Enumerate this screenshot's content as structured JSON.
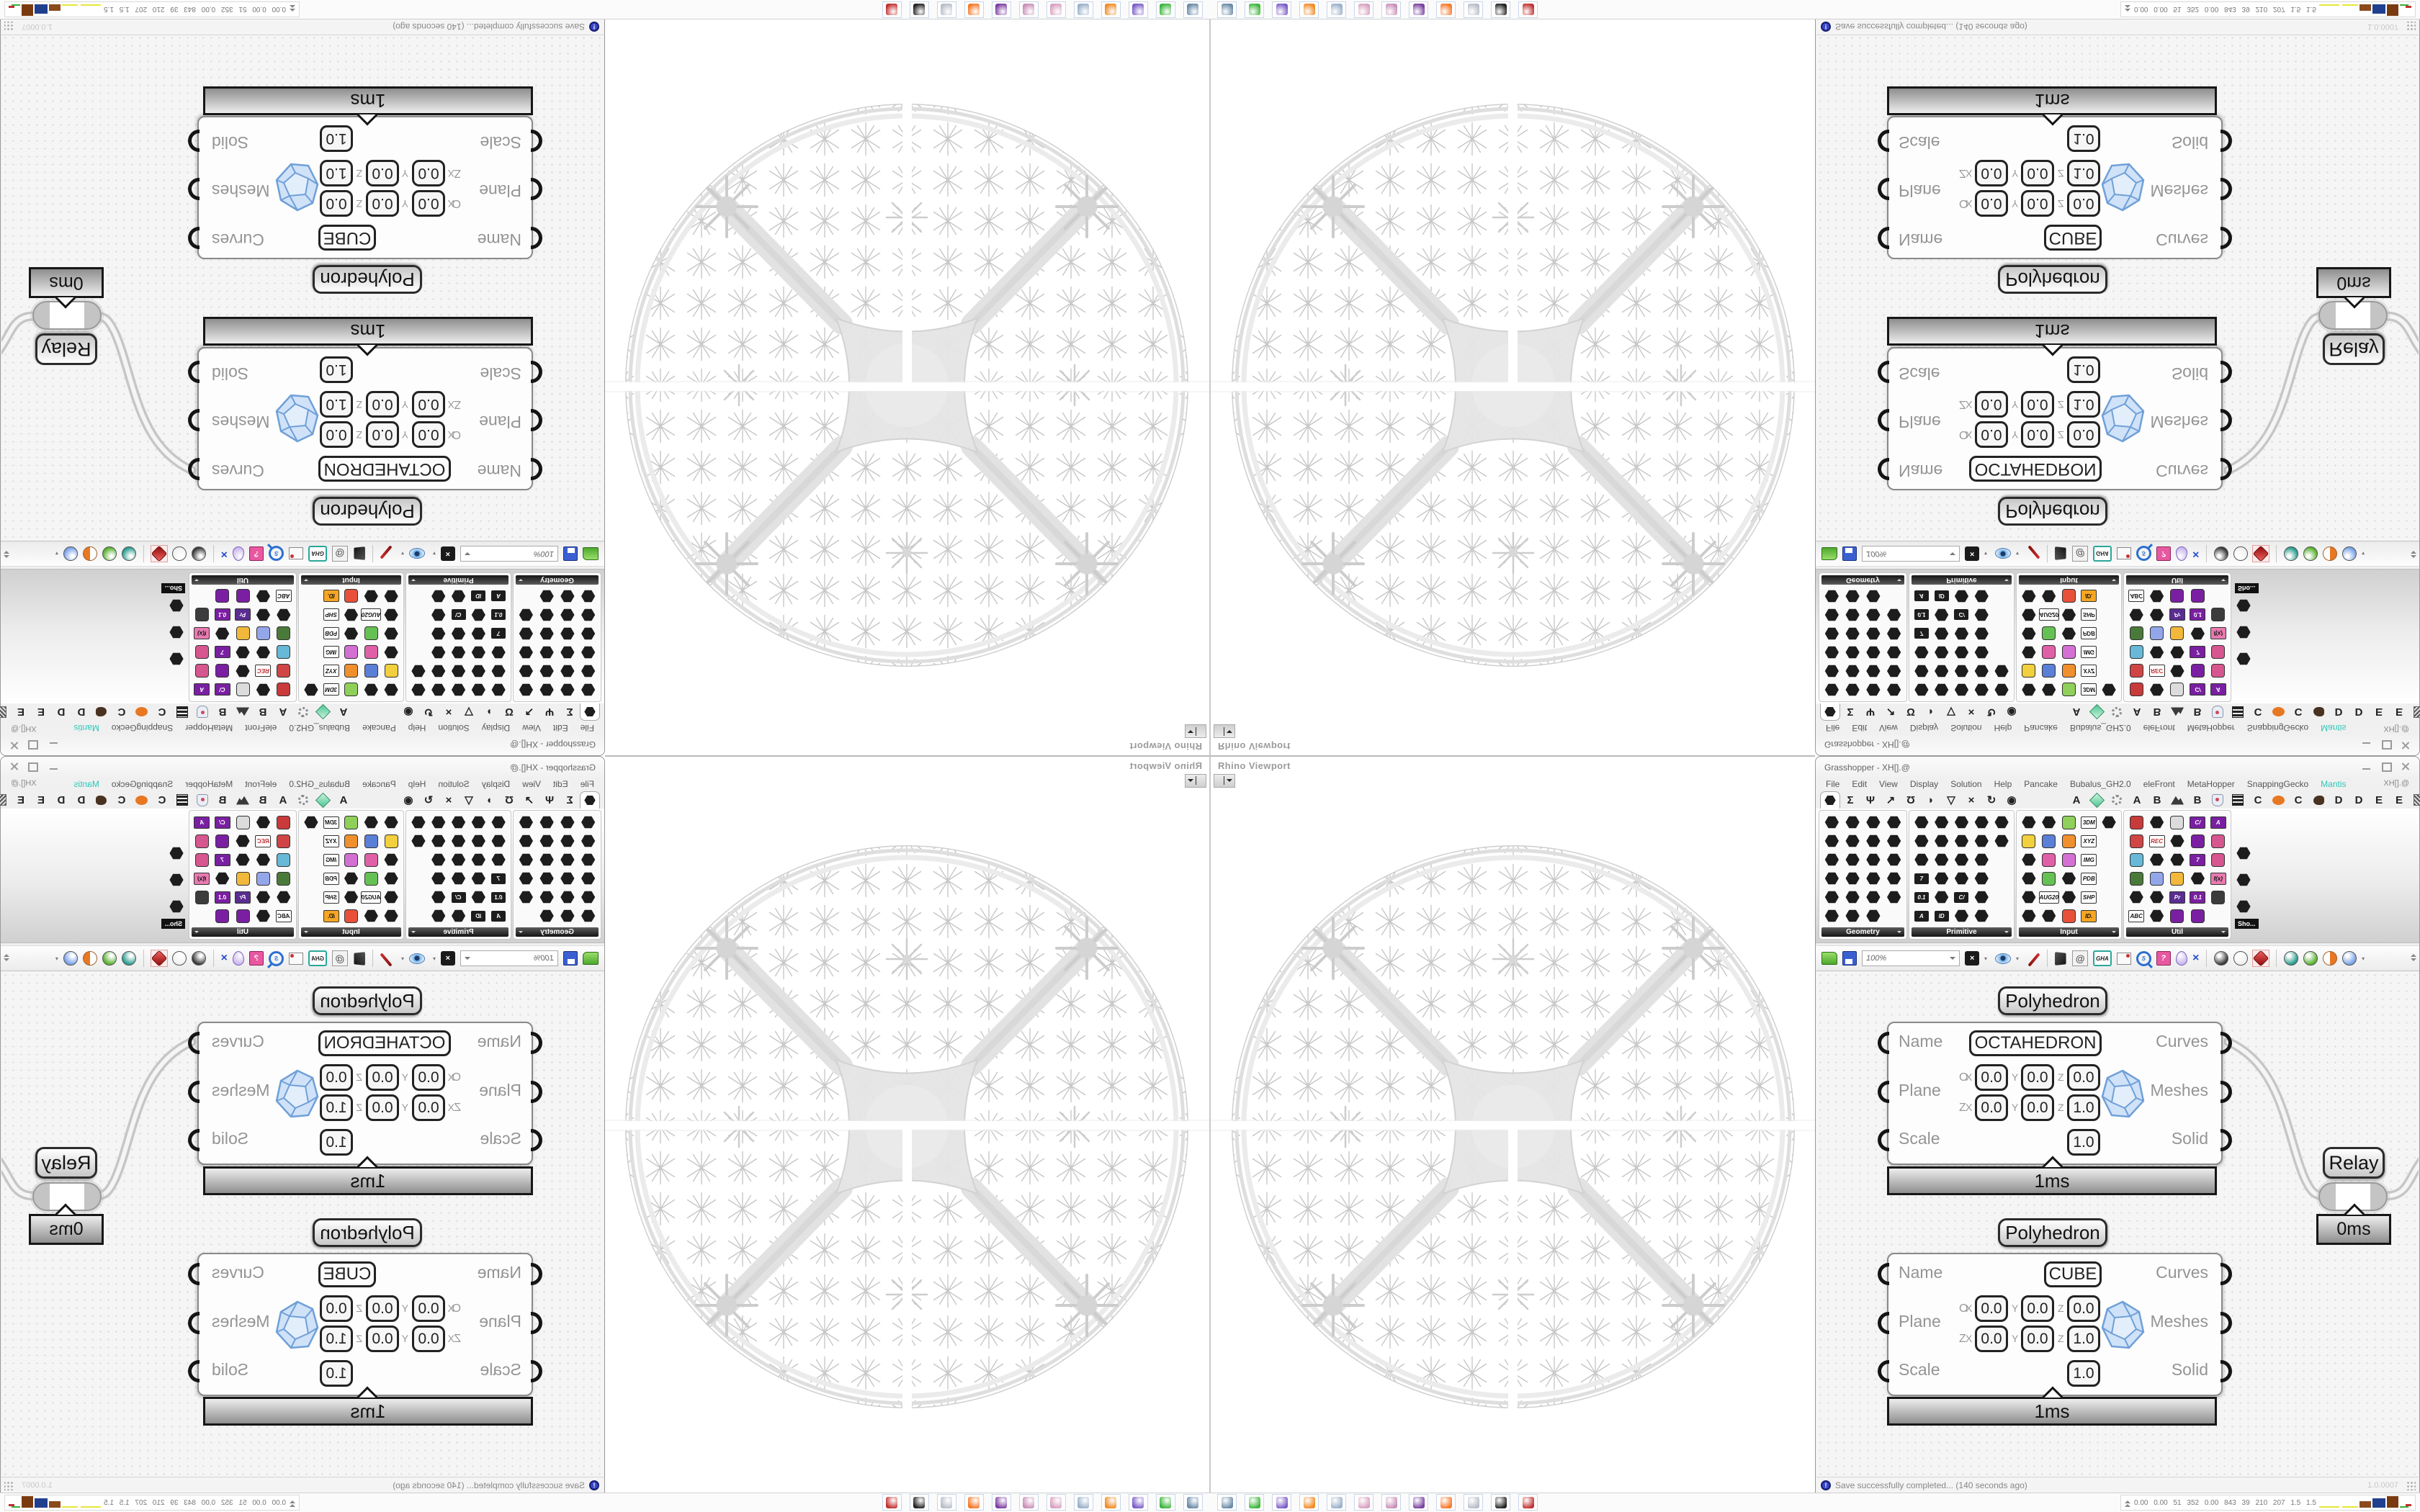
{
  "colors": {
    "menu_accent": "#2fc7b8",
    "wire": "#c6c6c6",
    "canvas_bg": "#f5f5f5",
    "gem_blue": "#aecdf2",
    "panel_label_bg": "#141414"
  },
  "viewport": {
    "label": "Rhino Viewport"
  },
  "gh": {
    "title": "Grasshopper - XH[].@",
    "title_right": "XH[].@",
    "menu": [
      "File",
      "Edit",
      "View",
      "Display",
      "Solution",
      "Help",
      "Pancake",
      "Bubalus_GH2.0",
      "eleFront",
      "MetaHopper",
      "SnappingGecko",
      "Mantis"
    ],
    "menu_highlight": "Mantis",
    "tabs_core": [
      {
        "name": "params",
        "glyph": "",
        "active": true
      },
      {
        "name": "maths",
        "glyph": "Σ"
      },
      {
        "name": "sets",
        "glyph": "Ψ"
      },
      {
        "name": "vector",
        "glyph": "↗"
      },
      {
        "name": "curve",
        "glyph": "Ʊ"
      },
      {
        "name": "surface",
        "glyph": "◗"
      },
      {
        "name": "mesh",
        "glyph": "▽"
      },
      {
        "name": "intersect",
        "glyph": "×"
      },
      {
        "name": "transform",
        "glyph": "↻"
      },
      {
        "name": "display",
        "glyph": "◉"
      }
    ],
    "tabs_plugins": [
      {
        "label": "A"
      },
      {
        "icon": "gem"
      },
      {
        "icon": "gear"
      },
      {
        "label": "A"
      },
      {
        "label": "B"
      },
      {
        "icon": "mountain"
      },
      {
        "label": "B"
      },
      {
        "icon": "shield"
      },
      {
        "icon": "grid"
      },
      {
        "label": "C"
      },
      {
        "icon": "dot"
      },
      {
        "label": "C"
      },
      {
        "icon": "bird"
      },
      {
        "label": "D"
      },
      {
        "label": "D"
      },
      {
        "label": "E"
      },
      {
        "label": "E"
      },
      {
        "icon": "dither"
      }
    ],
    "panels": [
      {
        "name": "Geometry",
        "cols": 4,
        "cells": [
          "h",
          "h",
          "h",
          "h",
          "h",
          "h",
          "h",
          "h",
          "h",
          "h",
          "h",
          "h",
          "h",
          "h",
          "h",
          "h",
          "h",
          "h",
          "h",
          "h",
          "h",
          "h",
          "h",
          ""
        ]
      },
      {
        "name": "Primitive",
        "cols": 5,
        "cells": [
          "h",
          "h",
          "h",
          "h",
          "h",
          "h",
          "h",
          "h",
          "h",
          "h",
          "h",
          "h",
          "h",
          "h",
          "",
          {
            "t": "7",
            "hex": 1
          },
          "h",
          "h",
          "h",
          "",
          {
            "t": "0.1",
            "hex": 1
          },
          "h",
          {
            "t": "C/",
            "hex": 1
          },
          "h",
          "",
          {
            "t": "A",
            "hex": 1
          },
          {
            "t": "ID",
            "hex": 1
          },
          "h",
          "h",
          ""
        ]
      },
      {
        "name": "Input",
        "cols": 5,
        "cells": [
          "h",
          "h",
          {
            "c": "#8fd05a"
          },
          {
            "t": "3DM"
          },
          "h",
          {
            "c": "#f2cf3c"
          },
          {
            "c": "#5a7fd6"
          },
          {
            "c": "#f08f2e"
          },
          {
            "t": "XYZ"
          },
          "",
          "h",
          {
            "c": "#e060a8"
          },
          {
            "c": "#d470d4"
          },
          {
            "t": "IMG"
          },
          "",
          "h",
          {
            "c": "#66c154"
          },
          "h",
          {
            "t": "PDB"
          },
          "",
          "h",
          {
            "t": "AUG20"
          },
          "h",
          {
            "t": "SHP"
          },
          "",
          "h",
          "h",
          {
            "c": "#e8503a"
          },
          {
            "t": "ID.",
            "bg": "#f5a623"
          },
          ""
        ]
      },
      {
        "name": "Util",
        "cols": 5,
        "cells": [
          {
            "c": "#c93a3a"
          },
          "h",
          {
            "c": "#dcdcdc"
          },
          {
            "t": "C/",
            "bg": "#7a1fa2",
            "fg": "#fff"
          },
          {
            "t": "A",
            "bg": "#7a1fa2",
            "fg": "#fff"
          },
          {
            "c": "#d04545"
          },
          {
            "t": "REC",
            "fg": "#c03030"
          },
          "h",
          {
            "c": "#7a1fa2"
          },
          {
            "c": "#d6568f"
          },
          {
            "c": "#68b8d8"
          },
          "h",
          "h",
          {
            "t": "7",
            "bg": "#7a1fa2",
            "fg": "#fff"
          },
          {
            "c": "#d6568f"
          },
          {
            "c": "#4a7a3a"
          },
          {
            "c": "#93a6ea"
          },
          {
            "c": "#f2b83c"
          },
          "h",
          {
            "t": "f(x)",
            "bg": "#e87ab0"
          },
          "h",
          "h",
          {
            "t": "Pr",
            "bg": "#5a2d91",
            "fg": "#fff"
          },
          {
            "t": "0.1",
            "bg": "#7a1fa2",
            "fg": "#fff"
          },
          {
            "c": "#3c3c3c"
          },
          {
            "t": "ABC"
          },
          "h",
          {
            "c": "#7a1fa2"
          },
          {
            "c": "#7a1fa2"
          },
          ""
        ]
      },
      {
        "name": "Sho...",
        "cols": 1,
        "cells": [
          "h",
          "h",
          "h"
        ],
        "collapsed": true
      }
    ],
    "toolbar": {
      "zoom_value": "100%",
      "items": [
        {
          "name": "open-file-button",
          "shape": "folder"
        },
        {
          "name": "save-file-button",
          "shape": "floppy"
        },
        {
          "name": "zoom-level-select",
          "shape": "zoom",
          "bindt": "gh.toolbar.zoom_value"
        },
        {
          "name": "zoom-extents-button",
          "shape": "extents",
          "t": "×"
        },
        {
          "name": "dropdown-caret",
          "shape": "dd",
          "t": "▾"
        },
        {
          "name": "preview-eye-button",
          "shape": "eye"
        },
        {
          "name": "dropdown-caret",
          "shape": "dd",
          "t": "▾"
        },
        {
          "name": "sketch-pen-button",
          "shape": "pen"
        },
        {
          "name": "separator",
          "shape": "sep"
        },
        {
          "name": "preview-box-button",
          "shape": "box3d"
        },
        {
          "name": "remote-control-button",
          "shape": "at",
          "t": "@"
        },
        {
          "name": "gha-assembly-button",
          "shape": "gha",
          "t": "GHA"
        },
        {
          "name": "broadcast-window-button",
          "shape": "win"
        },
        {
          "name": "finder-button",
          "shape": "mag",
          "t": "S"
        },
        {
          "name": "gift-button",
          "shape": "gift",
          "t": "?"
        },
        {
          "name": "balloon-button",
          "shape": "balloon"
        },
        {
          "name": "wire-display-button",
          "shape": "xarrows",
          "t": "×"
        },
        {
          "name": "separator",
          "shape": "sep"
        },
        {
          "name": "preview-dark-button",
          "shape": "ball",
          "c": "#3a3a3a"
        },
        {
          "name": "preview-wireframe-button",
          "shape": "ball",
          "c": "#f0f0f0"
        },
        {
          "name": "preview-gem-button",
          "shape": "gem",
          "selected": true
        },
        {
          "name": "separator",
          "shape": "sep"
        },
        {
          "name": "mode-teal-button",
          "shape": "ball",
          "c": "#2a9d8f"
        },
        {
          "name": "mode-green-button",
          "shape": "ball",
          "c": "#58b230"
        },
        {
          "name": "mode-half-button",
          "shape": "half"
        },
        {
          "name": "mode-blue-button",
          "shape": "ball",
          "c": "#7aa2e8"
        },
        {
          "name": "dropdown-caret",
          "shape": "dd",
          "t": "▾"
        }
      ]
    },
    "statusbar": {
      "icon_glyph": "!",
      "message": "Save successfully completed... (140 seconds ago)",
      "version": "1.0.0007"
    }
  },
  "canvas": {
    "axis": [
      "X",
      "Y",
      "Z"
    ],
    "row_prefixes": [
      "O",
      "Z"
    ],
    "components": [
      {
        "header": "Polyhedron",
        "name_value": "OCTAHEDRON",
        "inputs": [
          "Name",
          "Plane",
          "Scale"
        ],
        "outputs": [
          "Curves",
          "Meshes",
          "Solid"
        ],
        "plane": [
          [
            "0.0",
            "0.0",
            "0.0"
          ],
          [
            "0.0",
            "0.0",
            "1.0"
          ]
        ],
        "scale_value": "1.0",
        "profiler": "1ms"
      },
      {
        "header": "Polyhedron",
        "name_value": "CUBE",
        "inputs": [
          "Name",
          "Plane",
          "Scale"
        ],
        "outputs": [
          "Curves",
          "Meshes",
          "Solid"
        ],
        "plane": [
          [
            "0.0",
            "0.0",
            "0.0"
          ],
          [
            "0.0",
            "0.0",
            "1.0"
          ]
        ],
        "scale_value": "1.0",
        "profiler": "1ms"
      }
    ],
    "relay": {
      "label": "Relay",
      "profiler": "0ms"
    }
  },
  "taskbar": {
    "icons": [
      {
        "name": "system-monitor-icon",
        "c": "#6a8aa8"
      },
      {
        "name": "console-icon",
        "c": "#3db53d"
      },
      {
        "name": "floppy64-icon",
        "c": "#7a5cc6"
      },
      {
        "name": "firefox-icon",
        "c": "#f08a24"
      },
      {
        "name": "calculator-icon",
        "c": "#9ab0c8"
      },
      {
        "name": "paint-palette-icon",
        "c": "#d8a0c0"
      },
      {
        "name": "paint-palette-2-icon",
        "c": "#c890b8"
      },
      {
        "name": "owl-icon",
        "c": "#7a3fa0"
      },
      {
        "name": "blender-icon",
        "c": "#f5792a"
      },
      {
        "name": "documents-icon",
        "c": "#b8bcc8"
      },
      {
        "name": "cat-icon",
        "c": "#222222"
      },
      {
        "name": "red-gear-icon",
        "c": "#c03030"
      }
    ],
    "tray_text": "0.00 0.00  51  352 0.00 843  39  210  207  1.5  1.5  34  30 53457054"
  }
}
